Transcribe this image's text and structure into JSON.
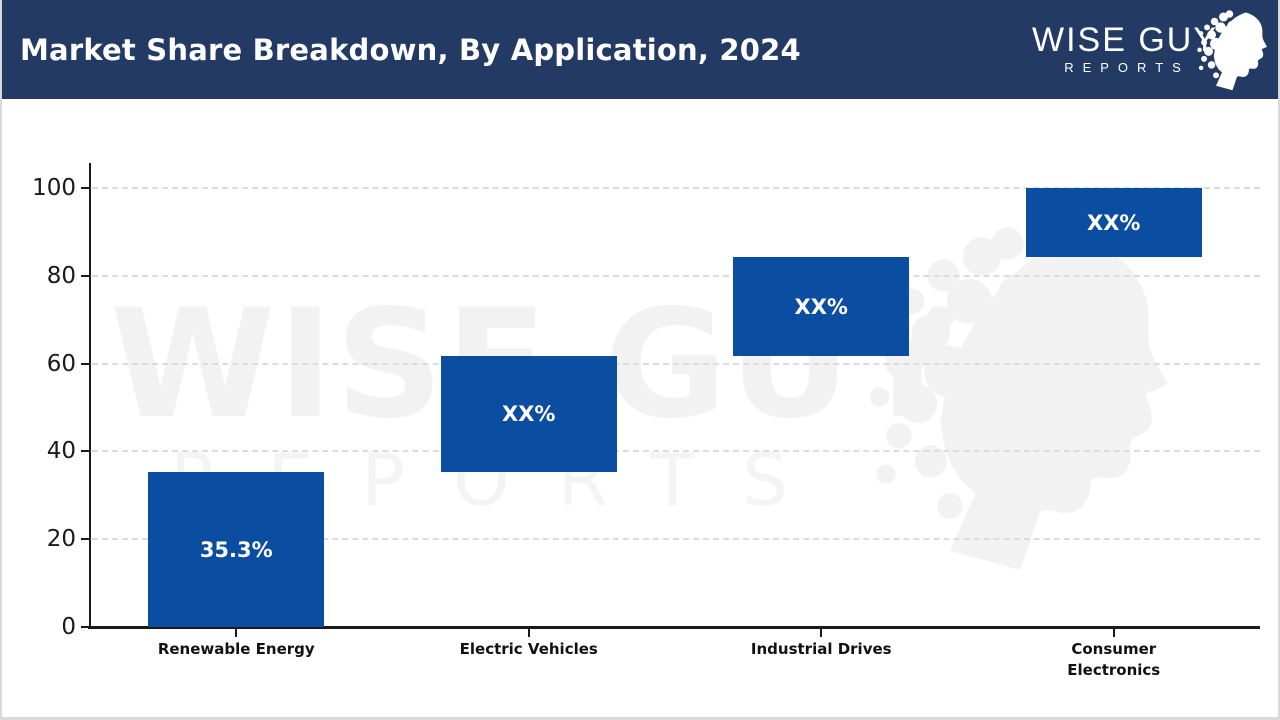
{
  "header": {
    "title": "Market Share Breakdown, By Application, 2024",
    "logo": {
      "word": "WISE GUY",
      "sub": "REPORTS"
    },
    "bg_color": "#223a64"
  },
  "watermark": {
    "word": "WISE GUY",
    "sub": "REPORTS"
  },
  "chart_data": {
    "type": "bar",
    "subtype": "waterfall",
    "title": "Market Share Breakdown, By Application, 2024",
    "xlabel": "",
    "ylabel": "",
    "ylim": [
      0,
      100
    ],
    "yticks": [
      0,
      20,
      40,
      60,
      80,
      100
    ],
    "grid": "horizontal-dashed",
    "bar_color": "#0b4da1",
    "categories": [
      "Renewable Energy",
      "Electric Vehicles",
      "Industrial Drives",
      "Consumer Electronics"
    ],
    "segments": [
      {
        "category": "Renewable Energy",
        "start": 0,
        "end": 35.3,
        "label": "35.3%"
      },
      {
        "category": "Electric Vehicles",
        "start": 35.3,
        "end": 61.8,
        "label": "XX%"
      },
      {
        "category": "Industrial Drives",
        "start": 61.8,
        "end": 84.2,
        "label": "XX%"
      },
      {
        "category": "Consumer Electronics",
        "start": 84.2,
        "end": 100,
        "label": "XX%"
      }
    ]
  }
}
